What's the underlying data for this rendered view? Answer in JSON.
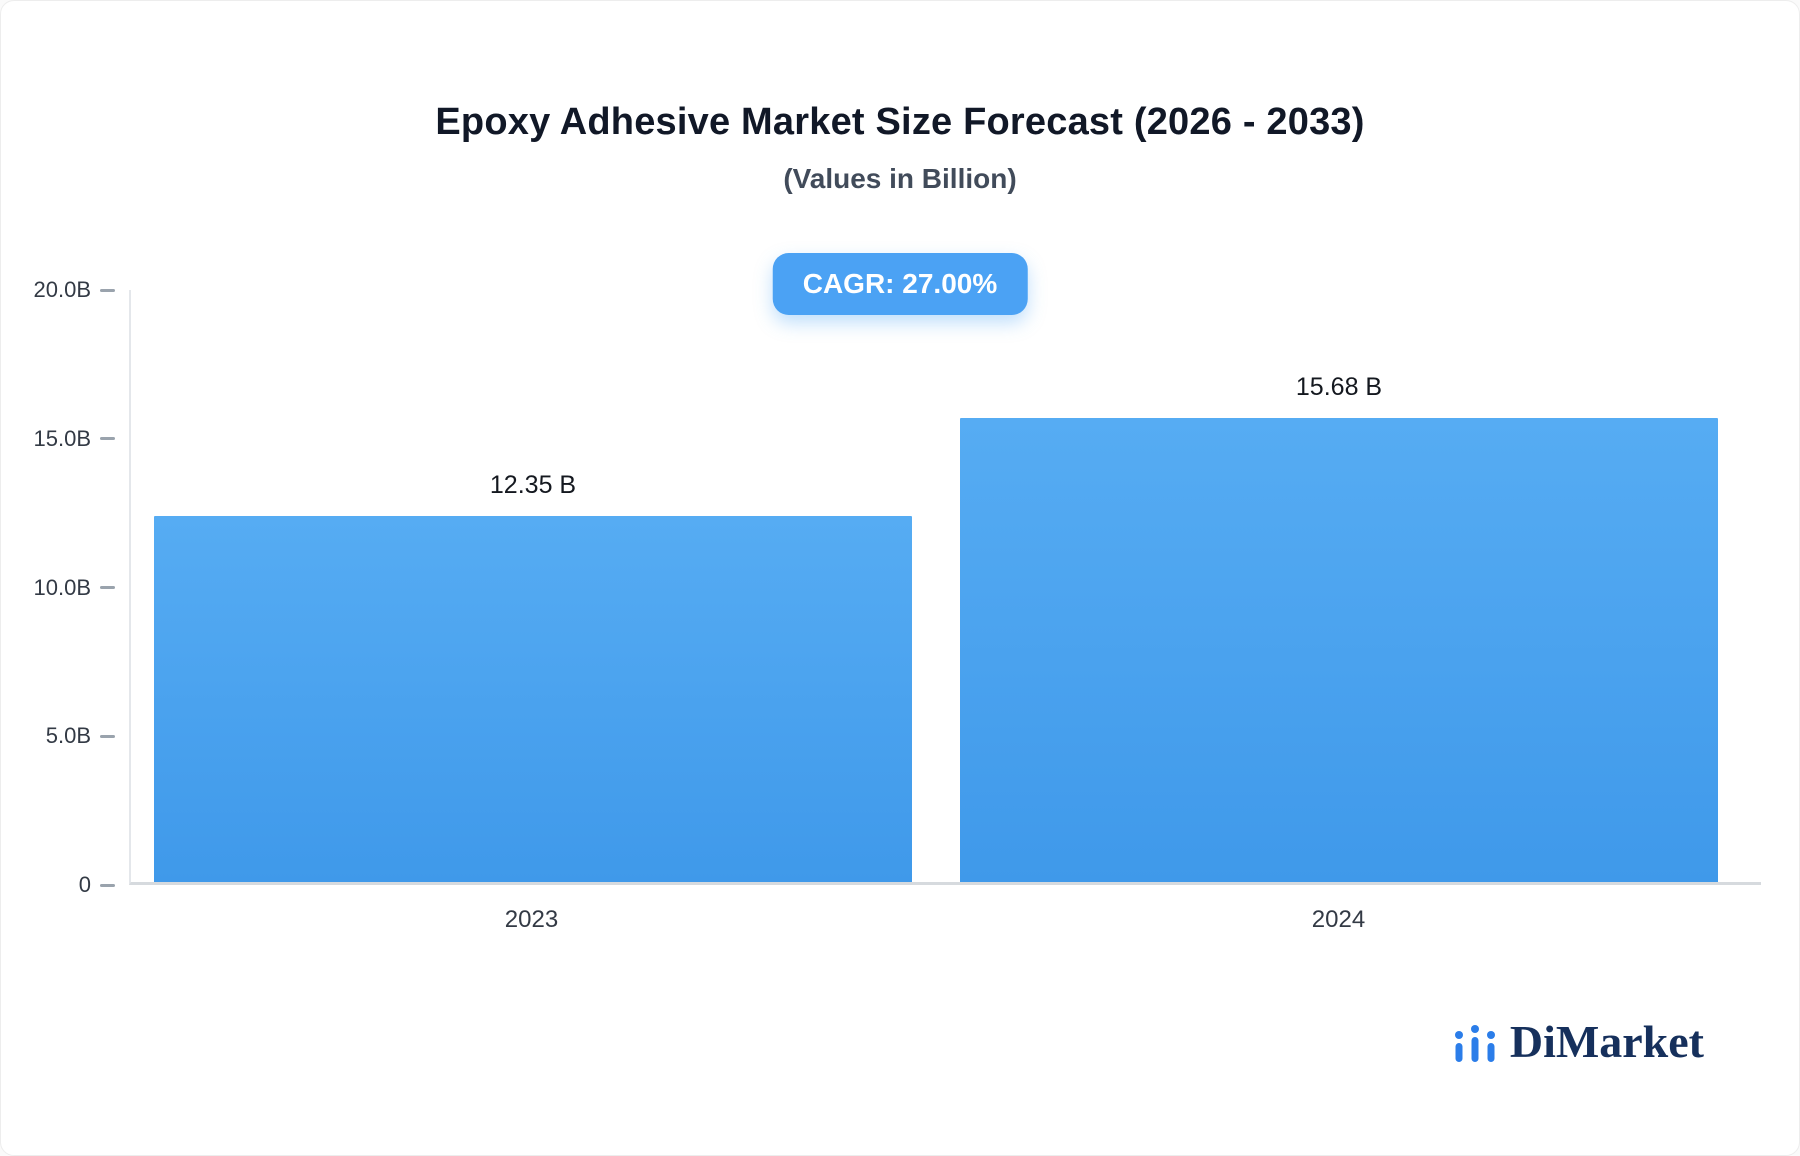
{
  "header": {
    "title": "Epoxy Adhesive Market Size Forecast (2026 - 2033)",
    "subtitle": "(Values in Billion)"
  },
  "badge": {
    "label": "CAGR: 27.00%",
    "bg": "#4BA2F4",
    "text_color": "#FFFFFF"
  },
  "chart_data": {
    "type": "bar",
    "categories": [
      "2023",
      "2024"
    ],
    "values": [
      12.35,
      15.68
    ],
    "value_labels": [
      "12.35 B",
      "15.68 B"
    ],
    "title": "Epoxy Adhesive Market Size Forecast (2026 - 2033)",
    "xlabel": "",
    "ylabel": "",
    "ylim": [
      0,
      20
    ],
    "yticks": [
      0,
      5,
      10,
      15,
      20
    ],
    "ytick_labels": [
      "0",
      "5.0B",
      "10.0B",
      "15.0B",
      "20.0B"
    ],
    "grid": "off",
    "legend": "none",
    "bar_color_top": "#56ACF3",
    "bar_color_bottom": "#3F99EA"
  },
  "logo": {
    "text": "DiMarket",
    "text_color": "#16305C",
    "icon": "bar-chart-icon",
    "icon_color": "#2B7DE9"
  }
}
